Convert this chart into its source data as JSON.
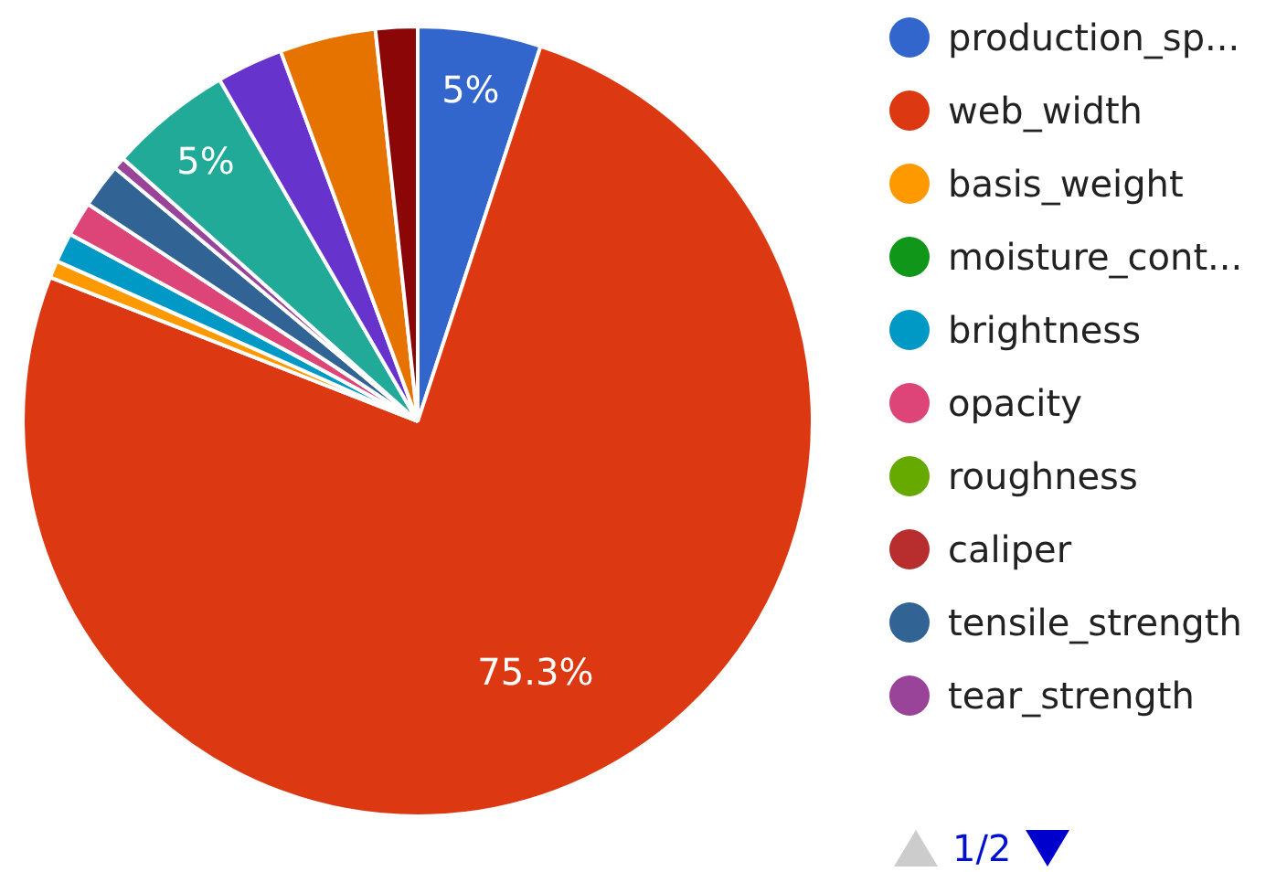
{
  "chart_data": {
    "type": "pie",
    "categories": [
      "production_sp...",
      "web_width",
      "basis_weight",
      "moisture_cont...",
      "brightness",
      "opacity",
      "roughness",
      "caliper",
      "tensile_strength",
      "tear_strength",
      null,
      null,
      null,
      null
    ],
    "values": [
      5.0,
      75.3,
      0.7,
      null,
      1.2,
      1.4,
      null,
      null,
      1.8,
      0.5,
      5.0,
      2.7,
      3.9,
      1.7
    ],
    "colors": [
      "#3366cc",
      "#dc3912",
      "#ff9900",
      "#109618",
      "#0099c6",
      "#dd4477",
      "#66aa00",
      "#b82e2e",
      "#316395",
      "#994499",
      "#22aa99",
      "#6633cc",
      "#e67300",
      "#8b0707"
    ],
    "value_labels": [
      "5%",
      "75.3%",
      null,
      null,
      null,
      null,
      null,
      null,
      null,
      null,
      "5%",
      null,
      null,
      null
    ],
    "legend": "right",
    "annotations": [
      "1/2"
    ]
  }
}
